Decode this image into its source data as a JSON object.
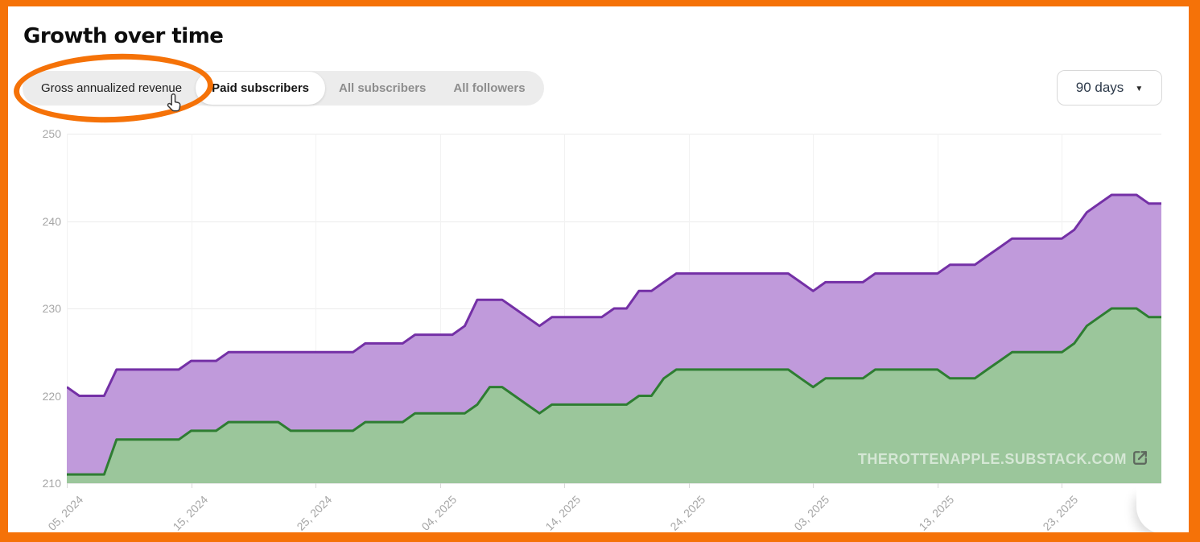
{
  "frame": {
    "border_color": "#f57208"
  },
  "header": {
    "title": "Growth over time"
  },
  "tabs": {
    "items": [
      {
        "label": "Gross annualized revenue",
        "state": "default"
      },
      {
        "label": "Paid subscribers",
        "state": "active"
      },
      {
        "label": "All subscribers",
        "state": "muted"
      },
      {
        "label": "All followers",
        "state": "muted"
      }
    ]
  },
  "range_selector": {
    "label": "90 days",
    "caret_icon": "caret-down"
  },
  "watermark": {
    "text": "THEROTTENAPPLE.SUBSTACK.COM",
    "icon": "external-link-icon"
  },
  "annotation": {
    "shape": "ellipse",
    "color": "#f57208",
    "target": "Gross annualized revenue",
    "cursor": "hand-pointer"
  },
  "chart_data": {
    "type": "area",
    "title": "Growth over time",
    "legend": "none",
    "grid": true,
    "x_axis": {
      "tick_labels": [
        "05, 2024",
        "15, 2024",
        "25, 2024",
        "04, 2025",
        "14, 2025",
        "24, 2025",
        "03, 2025",
        "13, 2025",
        "23, 2025"
      ],
      "tick_days": [
        0,
        10,
        20,
        30,
        40,
        50,
        60,
        70,
        80
      ]
    },
    "y_axis": {
      "ticks": [
        210,
        220,
        230,
        240,
        250
      ],
      "range": [
        210,
        250
      ]
    },
    "series": [
      {
        "name": "upper-series",
        "line_color": "#7430a6",
        "fill_color": "#c09adb",
        "values": [
          221,
          220,
          220,
          220,
          223,
          223,
          223,
          223,
          223,
          223,
          224,
          224,
          224,
          225,
          225,
          225,
          225,
          225,
          225,
          225,
          225,
          225,
          225,
          225,
          226,
          226,
          226,
          226,
          227,
          227,
          227,
          227,
          228,
          231,
          231,
          231,
          230,
          229,
          228,
          229,
          229,
          229,
          229,
          229,
          230,
          230,
          232,
          232,
          233,
          234,
          234,
          234,
          234,
          234,
          234,
          234,
          234,
          234,
          234,
          233,
          232,
          233,
          233,
          233,
          233,
          234,
          234,
          234,
          234,
          234,
          234,
          235,
          235,
          235,
          236,
          237,
          238,
          238,
          238,
          238,
          238,
          239,
          241,
          242,
          243,
          243,
          243,
          242,
          242
        ]
      },
      {
        "name": "lower-series",
        "line_color": "#2e7d32",
        "fill_color": "#9bc69b",
        "values": [
          211,
          211,
          211,
          211,
          215,
          215,
          215,
          215,
          215,
          215,
          216,
          216,
          216,
          217,
          217,
          217,
          217,
          217,
          216,
          216,
          216,
          216,
          216,
          216,
          217,
          217,
          217,
          217,
          218,
          218,
          218,
          218,
          218,
          219,
          221,
          221,
          220,
          219,
          218,
          219,
          219,
          219,
          219,
          219,
          219,
          219,
          220,
          220,
          222,
          223,
          223,
          223,
          223,
          223,
          223,
          223,
          223,
          223,
          223,
          222,
          221,
          222,
          222,
          222,
          222,
          223,
          223,
          223,
          223,
          223,
          223,
          222,
          222,
          222,
          223,
          224,
          225,
          225,
          225,
          225,
          225,
          226,
          228,
          229,
          230,
          230,
          230,
          229,
          229
        ]
      }
    ],
    "style": {
      "gridline_h_color": "#ebebeb",
      "gridline_v_color": "#f2f2f2",
      "axis_text_color": "#a6a6a6"
    }
  }
}
